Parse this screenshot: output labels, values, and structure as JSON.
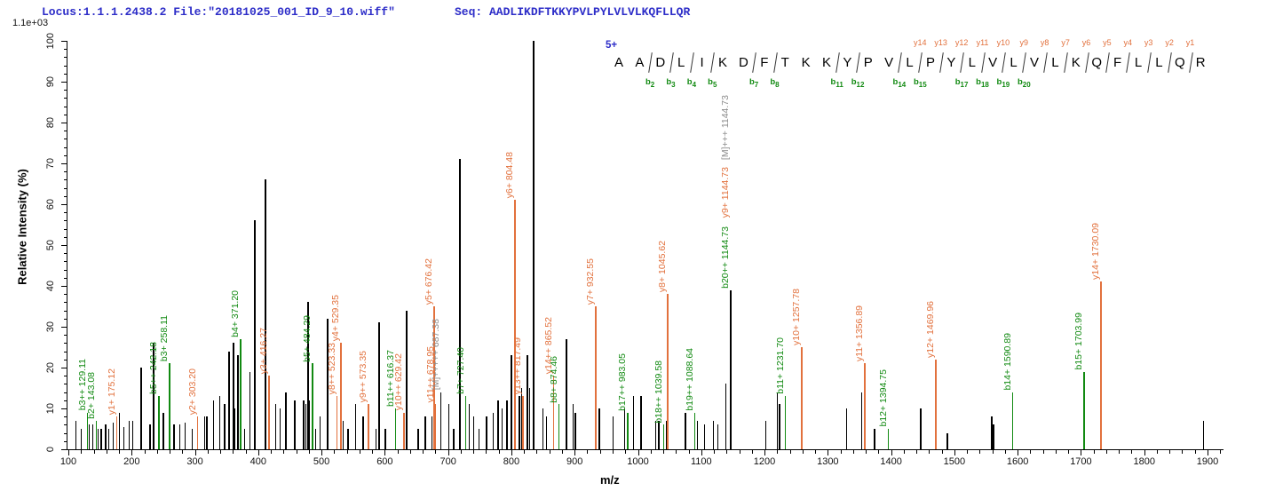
{
  "header": {
    "locus_file": "Locus:1.1.1.2438.2 File:\"20181025_001_ID_9_10.wiff\"",
    "seq": "Seq: AADLIKDFTKKYPVLPYLVLVLKQFLLQR"
  },
  "colors": {
    "header_blue": "#2d2dc8",
    "b_ion_green": "#128a12",
    "y_ion_orange": "#e2713d",
    "precursor_gray": "#8c8c8c",
    "peak_black": "#000000"
  },
  "annotation": {
    "charge_label": "5+",
    "residues": [
      "A",
      "A",
      "D",
      "L",
      "I",
      "K",
      "D",
      "F",
      "T",
      "K",
      "K",
      "Y",
      "P",
      "V",
      "L",
      "P",
      "Y",
      "L",
      "V",
      "L",
      "V",
      "L",
      "K",
      "Q",
      "F",
      "L",
      "L",
      "Q",
      "R"
    ],
    "b_cuts": [
      {
        "after": 2,
        "label": "b2"
      },
      {
        "after": 3,
        "label": "b3"
      },
      {
        "after": 4,
        "label": "b4"
      },
      {
        "after": 5,
        "label": "b5"
      },
      {
        "after": 7,
        "label": "b7"
      },
      {
        "after": 8,
        "label": "b8"
      },
      {
        "after": 11,
        "label": "b11"
      },
      {
        "after": 12,
        "label": "b12"
      },
      {
        "after": 14,
        "label": "b14"
      },
      {
        "after": 15,
        "label": "b15"
      },
      {
        "after": 17,
        "label": "b17"
      },
      {
        "after": 18,
        "label": "b18"
      },
      {
        "after": 19,
        "label": "b19"
      },
      {
        "after": 20,
        "label": "b20"
      }
    ],
    "y_cuts": [
      {
        "after": 15,
        "label": "y14"
      },
      {
        "after": 16,
        "label": "y13"
      },
      {
        "after": 17,
        "label": "y12"
      },
      {
        "after": 18,
        "label": "y11"
      },
      {
        "after": 19,
        "label": "y10"
      },
      {
        "after": 20,
        "label": "y9"
      },
      {
        "after": 21,
        "label": "y8"
      },
      {
        "after": 22,
        "label": "y7"
      },
      {
        "after": 23,
        "label": "y6"
      },
      {
        "after": 24,
        "label": "y5"
      },
      {
        "after": 25,
        "label": "y4"
      },
      {
        "after": 26,
        "label": "y3"
      },
      {
        "after": 27,
        "label": "y2"
      },
      {
        "after": 28,
        "label": "y1"
      }
    ]
  },
  "axes": {
    "y_title": "Relative  Intensity (%)",
    "y_top_label": "1.1e+03",
    "y_ticks": [
      0,
      10,
      20,
      30,
      40,
      50,
      60,
      70,
      80,
      90,
      100
    ],
    "x_ticks": [
      100,
      200,
      300,
      400,
      500,
      600,
      700,
      800,
      900,
      1000,
      1100,
      1200,
      1300,
      1400,
      1500,
      1600,
      1700,
      1800,
      1900
    ],
    "x_title": "m/z",
    "x_range": [
      100,
      1900
    ],
    "y_range": [
      0,
      100
    ]
  },
  "chart_data": {
    "type": "bar",
    "subtype": "mass-spectrum-sticks",
    "xlabel": "m/z",
    "ylabel": "Relative  Intensity (%)",
    "xlim": [
      100,
      1900
    ],
    "ylim": [
      0,
      100
    ],
    "peaks": [
      {
        "mz": 111,
        "i": 7,
        "s": "x"
      },
      {
        "mz": 119,
        "i": 5,
        "s": "x"
      },
      {
        "mz": 129.11,
        "i": 9,
        "s": "b",
        "labels": [
          {
            "t": "b3++ 129.11",
            "s": "b"
          }
        ]
      },
      {
        "mz": 132,
        "i": 6,
        "s": "x"
      },
      {
        "mz": 138,
        "i": 6,
        "s": "x"
      },
      {
        "mz": 143.08,
        "i": 7,
        "s": "b",
        "labels": [
          {
            "t": "b2+ 143.08",
            "s": "b"
          }
        ]
      },
      {
        "mz": 146,
        "i": 5,
        "s": "x"
      },
      {
        "mz": 151,
        "i": 5,
        "s": "x"
      },
      {
        "mz": 158,
        "i": 6,
        "s": "x"
      },
      {
        "mz": 163,
        "i": 5,
        "s": "x"
      },
      {
        "mz": 170,
        "i": 6.5,
        "s": "x"
      },
      {
        "mz": 175.12,
        "i": 8,
        "s": "y",
        "labels": [
          {
            "t": "y1+ 175.12",
            "s": "y"
          }
        ]
      },
      {
        "mz": 180,
        "i": 9,
        "s": "x"
      },
      {
        "mz": 187,
        "i": 5.5,
        "s": "x"
      },
      {
        "mz": 195,
        "i": 7,
        "s": "x"
      },
      {
        "mz": 201,
        "i": 7,
        "s": "x"
      },
      {
        "mz": 213,
        "i": 20,
        "s": "x"
      },
      {
        "mz": 215,
        "i": 12,
        "s": "x"
      },
      {
        "mz": 227,
        "i": 6,
        "s": "x"
      },
      {
        "mz": 229,
        "i": 6,
        "s": "x"
      },
      {
        "mz": 233,
        "i": 26,
        "s": "x"
      },
      {
        "mz": 242.18,
        "i": 13,
        "s": "b",
        "labels": [
          {
            "t": "b5++ 242.18",
            "s": "b"
          }
        ]
      },
      {
        "mz": 249,
        "i": 9,
        "s": "x"
      },
      {
        "mz": 258.11,
        "i": 21,
        "s": "b",
        "labels": [
          {
            "t": "b3+ 258.11",
            "s": "b"
          }
        ]
      },
      {
        "mz": 266,
        "i": 6,
        "s": "x"
      },
      {
        "mz": 275,
        "i": 6,
        "s": "x"
      },
      {
        "mz": 284,
        "i": 6.5,
        "s": "x"
      },
      {
        "mz": 295,
        "i": 5,
        "s": "x"
      },
      {
        "mz": 303.2,
        "i": 8,
        "s": "y",
        "labels": [
          {
            "t": "y2+ 303.20",
            "s": "y"
          }
        ]
      },
      {
        "mz": 314,
        "i": 8,
        "s": "x"
      },
      {
        "mz": 318,
        "i": 8,
        "s": "x"
      },
      {
        "mz": 328,
        "i": 12,
        "s": "x"
      },
      {
        "mz": 338,
        "i": 13,
        "s": "x"
      },
      {
        "mz": 346,
        "i": 11,
        "s": "x"
      },
      {
        "mz": 353,
        "i": 24,
        "s": "x"
      },
      {
        "mz": 359,
        "i": 26,
        "s": "x"
      },
      {
        "mz": 362,
        "i": 10,
        "s": "x"
      },
      {
        "mz": 367,
        "i": 23,
        "s": "x"
      },
      {
        "mz": 371.2,
        "i": 27,
        "s": "b",
        "labels": [
          {
            "t": "b4+ 371.20",
            "s": "b"
          }
        ]
      },
      {
        "mz": 378,
        "i": 5,
        "s": "x"
      },
      {
        "mz": 386,
        "i": 19,
        "s": "x"
      },
      {
        "mz": 393,
        "i": 56,
        "s": "x"
      },
      {
        "mz": 410,
        "i": 66,
        "s": "x"
      },
      {
        "mz": 416.27,
        "i": 18,
        "s": "y",
        "labels": [
          {
            "t": "y3+ 416.27",
            "s": "y"
          }
        ]
      },
      {
        "mz": 427,
        "i": 11,
        "s": "x"
      },
      {
        "mz": 434,
        "i": 10,
        "s": "x"
      },
      {
        "mz": 443,
        "i": 14,
        "s": "x"
      },
      {
        "mz": 457,
        "i": 12,
        "s": "x"
      },
      {
        "mz": 471,
        "i": 12,
        "s": "x"
      },
      {
        "mz": 474,
        "i": 11,
        "s": "x"
      },
      {
        "mz": 477,
        "i": 36,
        "s": "x"
      },
      {
        "mz": 480,
        "i": 12,
        "s": "x"
      },
      {
        "mz": 484.29,
        "i": 21,
        "s": "b",
        "labels": [
          {
            "t": "b5+ 484.29",
            "s": "b"
          }
        ]
      },
      {
        "mz": 490,
        "i": 5,
        "s": "x"
      },
      {
        "mz": 497,
        "i": 8,
        "s": "x"
      },
      {
        "mz": 508,
        "i": 32,
        "s": "x"
      },
      {
        "mz": 523.33,
        "i": 13,
        "s": "y",
        "labels": [
          {
            "t": "y8++ 523.33",
            "s": "y"
          }
        ]
      },
      {
        "mz": 529.35,
        "i": 26,
        "s": "y",
        "labels": [
          {
            "t": "y4+ 529.35",
            "s": "y"
          }
        ]
      },
      {
        "mz": 533,
        "i": 7,
        "s": "x"
      },
      {
        "mz": 541,
        "i": 5,
        "s": "x"
      },
      {
        "mz": 553,
        "i": 11,
        "s": "x"
      },
      {
        "mz": 565,
        "i": 8,
        "s": "x"
      },
      {
        "mz": 573.35,
        "i": 11,
        "s": "y",
        "labels": [
          {
            "t": "y9++ 573.35",
            "s": "y"
          }
        ]
      },
      {
        "mz": 585,
        "i": 5,
        "s": "x"
      },
      {
        "mz": 589,
        "i": 31,
        "s": "x"
      },
      {
        "mz": 600,
        "i": 5,
        "s": "x"
      },
      {
        "mz": 616.37,
        "i": 10,
        "s": "b",
        "labels": [
          {
            "t": "b11++ 616.37",
            "s": "b"
          }
        ]
      },
      {
        "mz": 629.42,
        "i": 9,
        "s": "y",
        "labels": [
          {
            "t": "y10++ 629.42",
            "s": "y"
          }
        ]
      },
      {
        "mz": 633,
        "i": 34,
        "s": "x"
      },
      {
        "mz": 652,
        "i": 5,
        "s": "x"
      },
      {
        "mz": 663,
        "i": 8,
        "s": "x"
      },
      {
        "mz": 674,
        "i": 8,
        "s": "x"
      },
      {
        "mz": 676.42,
        "i": 35,
        "s": "y",
        "labels": [
          {
            "t": "y5+ 676.42",
            "s": "y"
          }
        ]
      },
      {
        "mz": 678.95,
        "i": 11,
        "s": "y",
        "labels": [
          {
            "t": "y11++ 678.95",
            "s": "y"
          }
        ]
      },
      {
        "mz": 687.38,
        "i": 14,
        "s": "x",
        "labels": [
          {
            "t": "[M]+++++ 687.38",
            "s": "M"
          }
        ]
      },
      {
        "mz": 700,
        "i": 11,
        "s": "x"
      },
      {
        "mz": 708,
        "i": 5,
        "s": "x"
      },
      {
        "mz": 717,
        "i": 71,
        "s": "x"
      },
      {
        "mz": 727.4,
        "i": 13,
        "s": "b",
        "labels": [
          {
            "t": "b7+ 727.40",
            "s": "b"
          }
        ]
      },
      {
        "mz": 733,
        "i": 11,
        "s": "x"
      },
      {
        "mz": 740,
        "i": 8,
        "s": "x"
      },
      {
        "mz": 748,
        "i": 5,
        "s": "x"
      },
      {
        "mz": 760,
        "i": 8,
        "s": "x"
      },
      {
        "mz": 770,
        "i": 9,
        "s": "x"
      },
      {
        "mz": 778,
        "i": 12,
        "s": "x"
      },
      {
        "mz": 784,
        "i": 10,
        "s": "x"
      },
      {
        "mz": 792,
        "i": 12,
        "s": "x"
      },
      {
        "mz": 798,
        "i": 23,
        "s": "x"
      },
      {
        "mz": 804.48,
        "i": 61,
        "s": "y",
        "labels": [
          {
            "t": "y6+ 804.48",
            "s": "y"
          }
        ]
      },
      {
        "mz": 812,
        "i": 13,
        "s": "x"
      },
      {
        "mz": 815,
        "i": 15,
        "s": "x"
      },
      {
        "mz": 817.49,
        "i": 13,
        "s": "y",
        "labels": [
          {
            "t": "y13++ 817.49",
            "s": "y"
          }
        ]
      },
      {
        "mz": 824,
        "i": 23,
        "s": "x"
      },
      {
        "mz": 828,
        "i": 15,
        "s": "x"
      },
      {
        "mz": 834,
        "i": 100,
        "s": "x"
      },
      {
        "mz": 849,
        "i": 10,
        "s": "x"
      },
      {
        "mz": 855,
        "i": 8,
        "s": "x"
      },
      {
        "mz": 865.52,
        "i": 18,
        "s": "y",
        "labels": [
          {
            "t": "y14++ 865.52",
            "s": "y"
          }
        ]
      },
      {
        "mz": 874.46,
        "i": 11,
        "s": "b",
        "labels": [
          {
            "t": "b8+ 874.46",
            "s": "b"
          }
        ]
      },
      {
        "mz": 886,
        "i": 27,
        "s": "x"
      },
      {
        "mz": 897,
        "i": 11,
        "s": "x"
      },
      {
        "mz": 900,
        "i": 9,
        "s": "x"
      },
      {
        "mz": 932.55,
        "i": 35,
        "s": "y",
        "labels": [
          {
            "t": "y7+ 932.55",
            "s": "y"
          }
        ]
      },
      {
        "mz": 938,
        "i": 10,
        "s": "x"
      },
      {
        "mz": 960,
        "i": 8,
        "s": "x"
      },
      {
        "mz": 978,
        "i": 10,
        "s": "x"
      },
      {
        "mz": 983.05,
        "i": 9,
        "s": "b",
        "labels": [
          {
            "t": "b17++ 983.05",
            "s": "b"
          }
        ]
      },
      {
        "mz": 992,
        "i": 13,
        "s": "x"
      },
      {
        "mz": 1004,
        "i": 13,
        "s": "x"
      },
      {
        "mz": 1027,
        "i": 7,
        "s": "x"
      },
      {
        "mz": 1032,
        "i": 7,
        "s": "x"
      },
      {
        "mz": 1039.58,
        "i": 6,
        "s": "b",
        "labels": [
          {
            "t": "b18++ 1039.58",
            "s": "b"
          }
        ]
      },
      {
        "mz": 1044,
        "i": 7,
        "s": "x"
      },
      {
        "mz": 1045.62,
        "i": 38,
        "s": "y",
        "labels": [
          {
            "t": "y8+ 1045.62",
            "s": "y"
          }
        ]
      },
      {
        "mz": 1074,
        "i": 9,
        "s": "x"
      },
      {
        "mz": 1088.64,
        "i": 9,
        "s": "b",
        "labels": [
          {
            "t": "b19++ 1088.64",
            "s": "b"
          }
        ]
      },
      {
        "mz": 1093,
        "i": 7,
        "s": "x"
      },
      {
        "mz": 1104,
        "i": 6,
        "s": "x"
      },
      {
        "mz": 1118,
        "i": 7,
        "s": "x"
      },
      {
        "mz": 1125,
        "i": 6,
        "s": "x"
      },
      {
        "mz": 1138,
        "i": 16,
        "s": "x"
      },
      {
        "mz": 1144.73,
        "i": 39,
        "s": "x",
        "labels": [
          {
            "t": "b20++ 1144.73",
            "s": "b"
          },
          {
            "t": "y9+ 1144.73",
            "s": "y"
          },
          {
            "t": "[M]+++ 1144.73",
            "s": "M"
          }
        ]
      },
      {
        "mz": 1201,
        "i": 7,
        "s": "x"
      },
      {
        "mz": 1219,
        "i": 14,
        "s": "x"
      },
      {
        "mz": 1223,
        "i": 11,
        "s": "x"
      },
      {
        "mz": 1231.7,
        "i": 13,
        "s": "b",
        "labels": [
          {
            "t": "b11+ 1231.70",
            "s": "b"
          }
        ]
      },
      {
        "mz": 1257.78,
        "i": 25,
        "s": "y",
        "labels": [
          {
            "t": "y10+ 1257.78",
            "s": "y"
          }
        ]
      },
      {
        "mz": 1329,
        "i": 10,
        "s": "x"
      },
      {
        "mz": 1353,
        "i": 14,
        "s": "x"
      },
      {
        "mz": 1356.89,
        "i": 21,
        "s": "y",
        "labels": [
          {
            "t": "y11+ 1356.89",
            "s": "y"
          }
        ]
      },
      {
        "mz": 1373,
        "i": 5,
        "s": "x"
      },
      {
        "mz": 1394.75,
        "i": 5,
        "s": "b",
        "labels": [
          {
            "t": "b12+ 1394.75",
            "s": "b"
          }
        ]
      },
      {
        "mz": 1446,
        "i": 10,
        "s": "x"
      },
      {
        "mz": 1469.96,
        "i": 22,
        "s": "y",
        "labels": [
          {
            "t": "y12+ 1469.96",
            "s": "y"
          }
        ]
      },
      {
        "mz": 1488,
        "i": 4,
        "s": "x"
      },
      {
        "mz": 1558,
        "i": 8,
        "s": "x"
      },
      {
        "mz": 1561,
        "i": 6,
        "s": "x"
      },
      {
        "mz": 1590.89,
        "i": 14,
        "s": "b",
        "labels": [
          {
            "t": "b14+ 1590.89",
            "s": "b"
          }
        ]
      },
      {
        "mz": 1703.99,
        "i": 19,
        "s": "b",
        "labels": [
          {
            "t": "b15+ 1703.99",
            "s": "b"
          }
        ]
      },
      {
        "mz": 1730.09,
        "i": 41,
        "s": "y",
        "labels": [
          {
            "t": "y14+ 1730.09",
            "s": "y"
          }
        ]
      },
      {
        "mz": 1893,
        "i": 7,
        "s": "x"
      }
    ]
  }
}
